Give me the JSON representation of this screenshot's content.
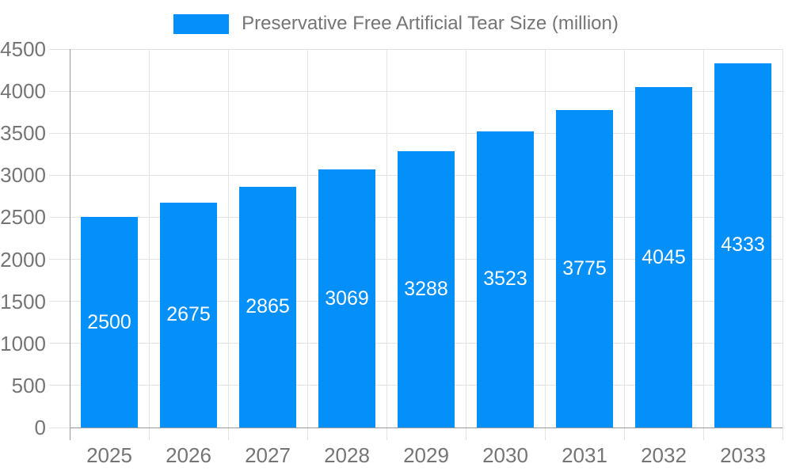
{
  "legend": {
    "label": "Preservative Free Artificial Tear Size (million)"
  },
  "chart_data": {
    "type": "bar",
    "title": "Preservative Free Artificial Tear Size (million)",
    "categories": [
      "2025",
      "2026",
      "2027",
      "2028",
      "2029",
      "2030",
      "2031",
      "2032",
      "2033"
    ],
    "values": [
      2500,
      2675,
      2865,
      3069,
      3288,
      3523,
      3775,
      4045,
      4333
    ],
    "xlabel": "",
    "ylabel": "",
    "ylim": [
      0,
      4500
    ],
    "ytick_step": 500,
    "yticks": [
      0,
      500,
      1000,
      1500,
      2000,
      2500,
      3000,
      3500,
      4000,
      4500
    ],
    "grid": true,
    "legend_position": "top",
    "bar_labels_inside": true,
    "colors": {
      "bar": "#048ff9",
      "bar_label": "#ffffff",
      "axis_text": "#757575",
      "grid_line": "#e3e3e3",
      "axis_line": "#999999"
    }
  }
}
